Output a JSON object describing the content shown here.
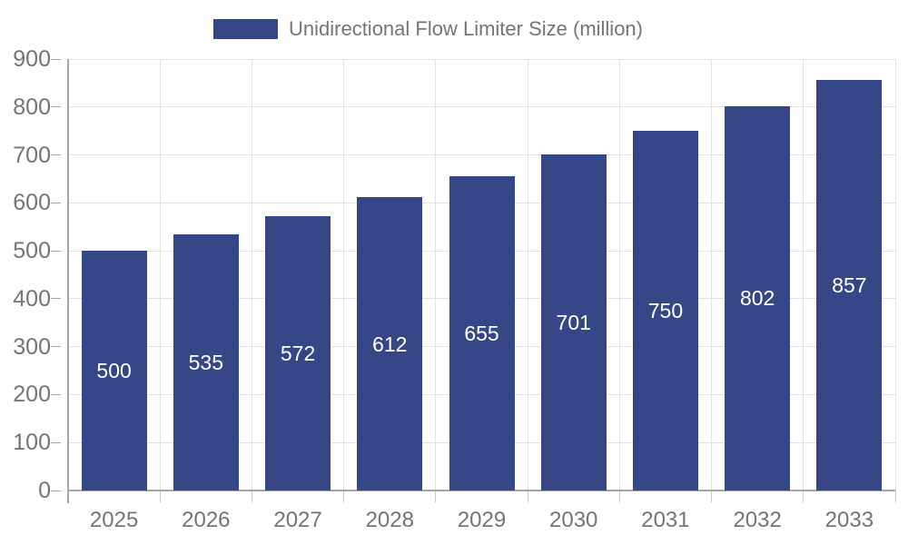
{
  "legend": {
    "label": "Unidirectional Flow Limiter Size (million)"
  },
  "colors": {
    "bar": "#354787",
    "grid": "#e2e2e2",
    "axis": "#a6a6a6",
    "tick_text": "#757575",
    "value_text": "#ffffff",
    "background": "#ffffff"
  },
  "chart_data": {
    "type": "bar",
    "title": "Unidirectional Flow Limiter Size (million)",
    "categories": [
      "2025",
      "2026",
      "2027",
      "2028",
      "2029",
      "2030",
      "2031",
      "2032",
      "2033"
    ],
    "values": [
      500,
      535,
      572,
      612,
      655,
      701,
      750,
      802,
      857
    ],
    "series": [
      {
        "name": "Unidirectional Flow Limiter Size (million)",
        "values": [
          500,
          535,
          572,
          612,
          655,
          701,
          750,
          802,
          857
        ]
      }
    ],
    "xlabel": "",
    "ylabel": "",
    "ylim": [
      0,
      900
    ],
    "ytick_step": 100,
    "ytick_labels": [
      "0",
      "100",
      "200",
      "300",
      "400",
      "500",
      "600",
      "700",
      "800",
      "900"
    ],
    "grid": true,
    "legend_position": "top",
    "value_labels_shown": true
  }
}
